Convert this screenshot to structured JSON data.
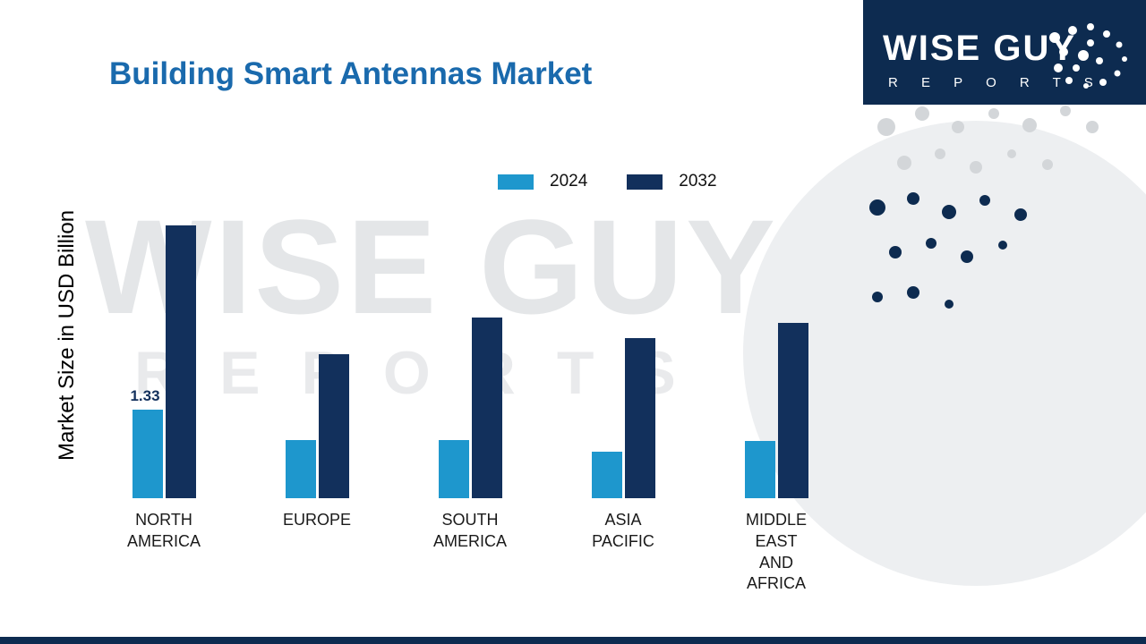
{
  "title": "Building Smart Antennas Market",
  "logo": {
    "line1": "WISE GUY",
    "line2": "R E P O R T S"
  },
  "watermark": {
    "line1": "WISE GUY",
    "line2": "REPORTS"
  },
  "colors": {
    "accent_blue": "#1e97cd",
    "navy": "#12305c",
    "title_blue": "#1a6aad",
    "header_navy": "#0d2b50"
  },
  "chart_data": {
    "type": "bar",
    "title": "Building Smart Antennas Market",
    "xlabel": "",
    "ylabel": "Market Size in USD Billion",
    "categories": [
      "NORTH AMERICA",
      "EUROPE",
      "SOUTH AMERICA",
      "ASIA PACIFIC",
      "MIDDLE EAST AND AFRICA"
    ],
    "category_labels": [
      "NORTH\nAMERICA",
      "EUROPE",
      "SOUTH\nAMERICA",
      "ASIA\nPACIFIC",
      "MIDDLE\nEAST\nAND\nAFRICA"
    ],
    "series": [
      {
        "name": "2024",
        "color": "#1e97cd",
        "values": [
          1.33,
          0.87,
          0.87,
          0.7,
          0.86
        ]
      },
      {
        "name": "2032",
        "color": "#12305c",
        "values": [
          4.1,
          2.16,
          2.71,
          2.4,
          2.63
        ]
      }
    ],
    "annotations": [
      {
        "series": "2024",
        "category": "NORTH AMERICA",
        "category_index": 0,
        "text": "1.33"
      }
    ],
    "ylim": [
      0,
      4.5
    ],
    "grid": false,
    "legend_position": "top"
  }
}
